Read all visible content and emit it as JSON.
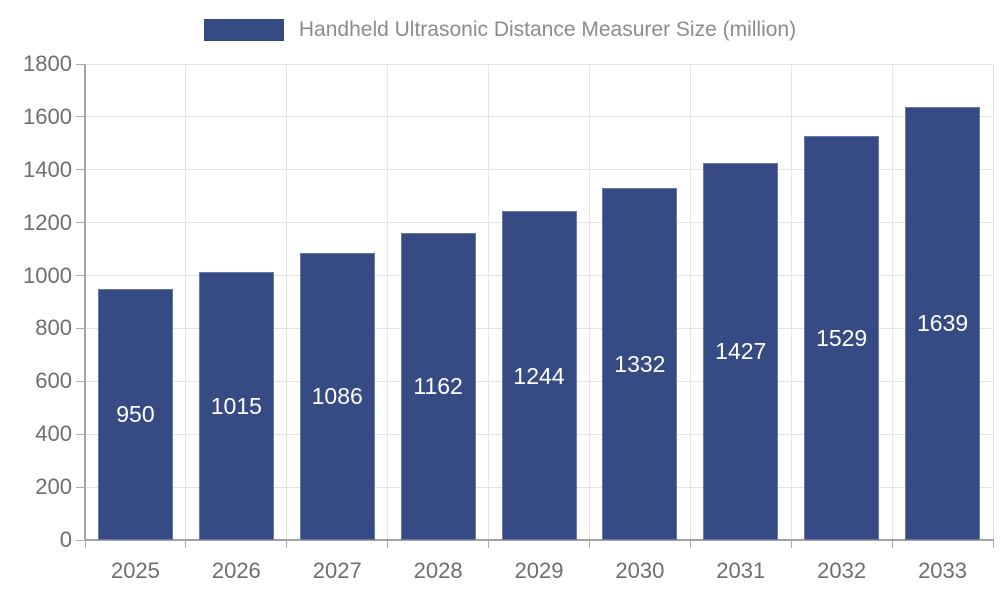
{
  "chart_data": {
    "type": "bar",
    "title": "Handheld Ultrasonic Distance Measurer Size (million)",
    "categories": [
      "2025",
      "2026",
      "2027",
      "2028",
      "2029",
      "2030",
      "2031",
      "2032",
      "2033"
    ],
    "series": [
      {
        "name": "Handheld Ultrasonic Distance Measurer Size (million)",
        "values": [
          950,
          1015,
          1086,
          1162,
          1244,
          1332,
          1427,
          1529,
          1639
        ]
      }
    ],
    "xlabel": "",
    "ylabel": "",
    "ylim": [
      0,
      1800
    ],
    "ytick_step": 200,
    "ytick_labels": [
      "0",
      "200",
      "400",
      "600",
      "800",
      "1000",
      "1200",
      "1400",
      "1600",
      "1800"
    ],
    "grid": true,
    "legend_position": "top-center",
    "bar_color": "#364a84",
    "bar_value_label_color": "#ffffff",
    "axis_text_color": "#6e6e6e",
    "legend_text_color": "#8c8c8c",
    "grid_color": "#e3e3e3",
    "axis_line_color": "#a3a3a3",
    "background_color": "#ffffff"
  }
}
